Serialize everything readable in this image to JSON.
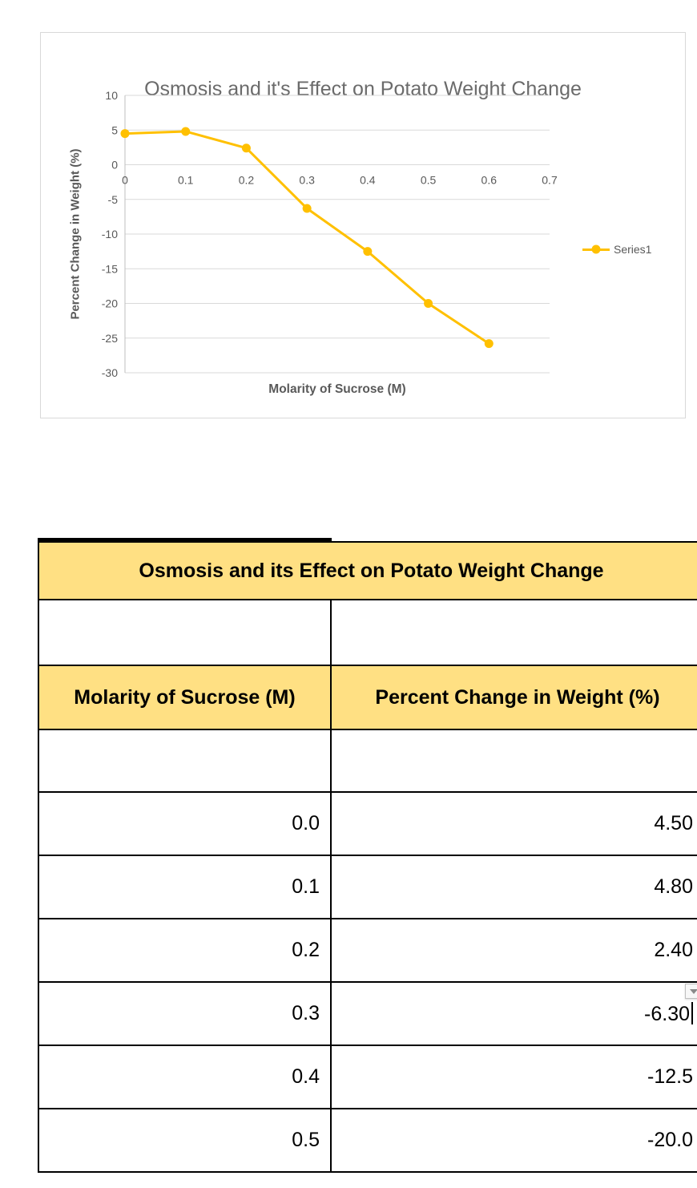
{
  "chart": {
    "title": "Osmosis and it's Effect on Potato Weight Change",
    "xlabel": "Molarity of Sucrose (M)",
    "ylabel": "Percent Change in Weight (%)",
    "legend_label": "Series1",
    "line_color": "#FFC000"
  },
  "chart_data": {
    "type": "line",
    "title": "Osmosis and it's Effect on Potato Weight Change",
    "xlabel": "Molarity of Sucrose (M)",
    "ylabel": "Percent Change in Weight (%)",
    "x": [
      0,
      0.1,
      0.2,
      0.3,
      0.4,
      0.5,
      0.6
    ],
    "series": [
      {
        "name": "Series1",
        "color": "#FFC000",
        "values": [
          4.5,
          4.8,
          2.4,
          -6.3,
          -12.5,
          -20.0,
          -25.8
        ]
      }
    ],
    "xlim": [
      0,
      0.7
    ],
    "ylim": [
      -30,
      10
    ],
    "xticks": [
      0,
      0.1,
      0.2,
      0.3,
      0.4,
      0.5,
      0.6,
      0.7
    ],
    "yticks": [
      10,
      5,
      0,
      -5,
      -10,
      -15,
      -20,
      -25,
      -30
    ],
    "grid": "horizontal",
    "legend_position": "right"
  },
  "table": {
    "title": "Osmosis and its Effect on Potato Weight Change",
    "headers": [
      "Molarity of Sucrose (M)",
      "Percent Change in Weight (%)"
    ],
    "rows": [
      [
        "0.0",
        "4.50"
      ],
      [
        "0.1",
        "4.80"
      ],
      [
        "0.2",
        "2.40"
      ],
      [
        "0.3",
        "-6.30"
      ],
      [
        "0.4",
        "-12.5"
      ],
      [
        "0.5",
        "-20.0"
      ]
    ],
    "editing_row": 3,
    "header_bg": "#FFE083"
  }
}
